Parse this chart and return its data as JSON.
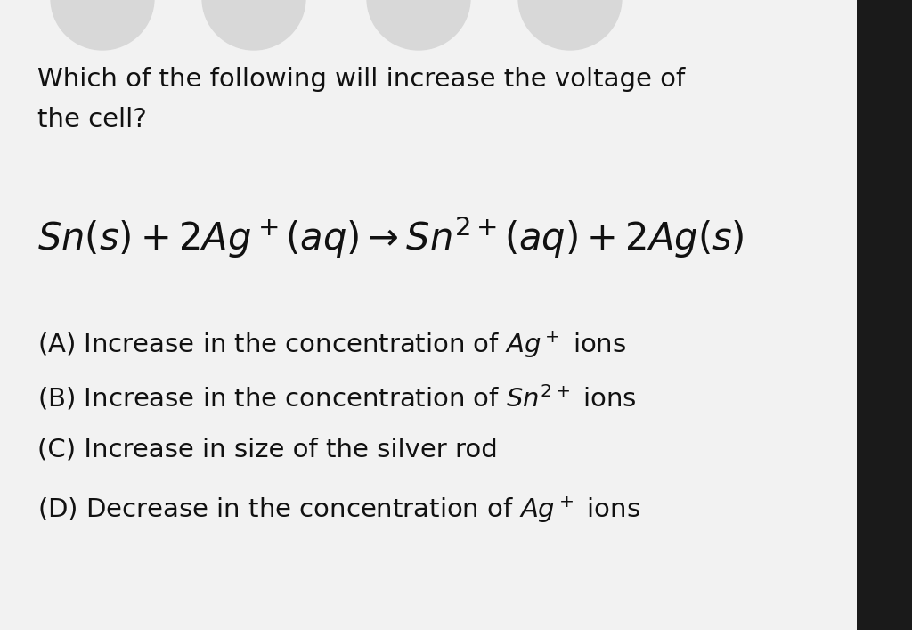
{
  "background_color": "#f2f2f2",
  "right_bar_color": "#1a1a1a",
  "top_circles_color": "#d8d8d8",
  "question_text_line1": "Which of the following will increase the voltage of",
  "question_text_line2": "the cell?",
  "equation": "$Sn(s) + 2Ag^+(aq) \\rightarrow Sn^{2+}(aq) + 2Ag(s)$",
  "option_A_pre": "(A) ",
  "option_A_post": "Increase in the concentration of Ag",
  "option_A_sup": "+",
  "option_A_end": " ions",
  "option_B_pre": "(B) ",
  "option_B_post": "Increase in the concentration of Sn",
  "option_B_sup": "2+",
  "option_B_end": " ions",
  "option_C": "(C) Increase in size of the silver rod",
  "option_D_pre": "(D) ",
  "option_D_post": "Decrease in the concentration of Ag",
  "option_D_sup": "+",
  "option_D_end": " ions",
  "question_fontsize": 21,
  "equation_fontsize": 30,
  "option_fontsize": 21,
  "text_color": "#111111",
  "fig_width": 10.24,
  "fig_height": 7.07,
  "dpi": 100
}
